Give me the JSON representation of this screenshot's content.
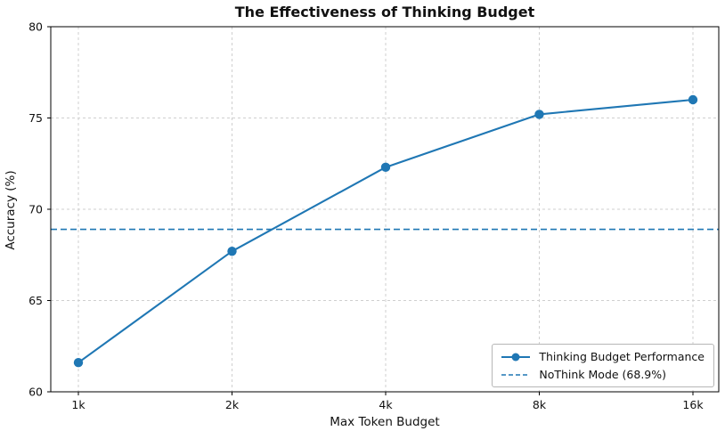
{
  "chart_data": {
    "type": "line",
    "title": "The Effectiveness of Thinking Budget",
    "xlabel": "Max Token Budget",
    "ylabel": "Accuracy (%)",
    "categories": [
      "1k",
      "2k",
      "4k",
      "8k",
      "16k"
    ],
    "series": [
      {
        "name": "Thinking Budget Performance",
        "style": "solid-line-circle-markers",
        "values": [
          61.6,
          67.7,
          72.3,
          75.2,
          76.0
        ]
      },
      {
        "name": "NoThink Mode (68.9%)",
        "style": "dashed-horizontal-line",
        "value": 68.9
      }
    ],
    "ylim": [
      60,
      80
    ],
    "yticks": [
      60,
      65,
      70,
      75,
      80
    ],
    "grid": true,
    "grid_style": "dashed",
    "legend_position": "lower right",
    "colors": {
      "line": "#1f77b4",
      "baseline": "#1f77b4",
      "grid": "#cfcfcf",
      "spine": "#000000",
      "text": "#111111"
    }
  }
}
